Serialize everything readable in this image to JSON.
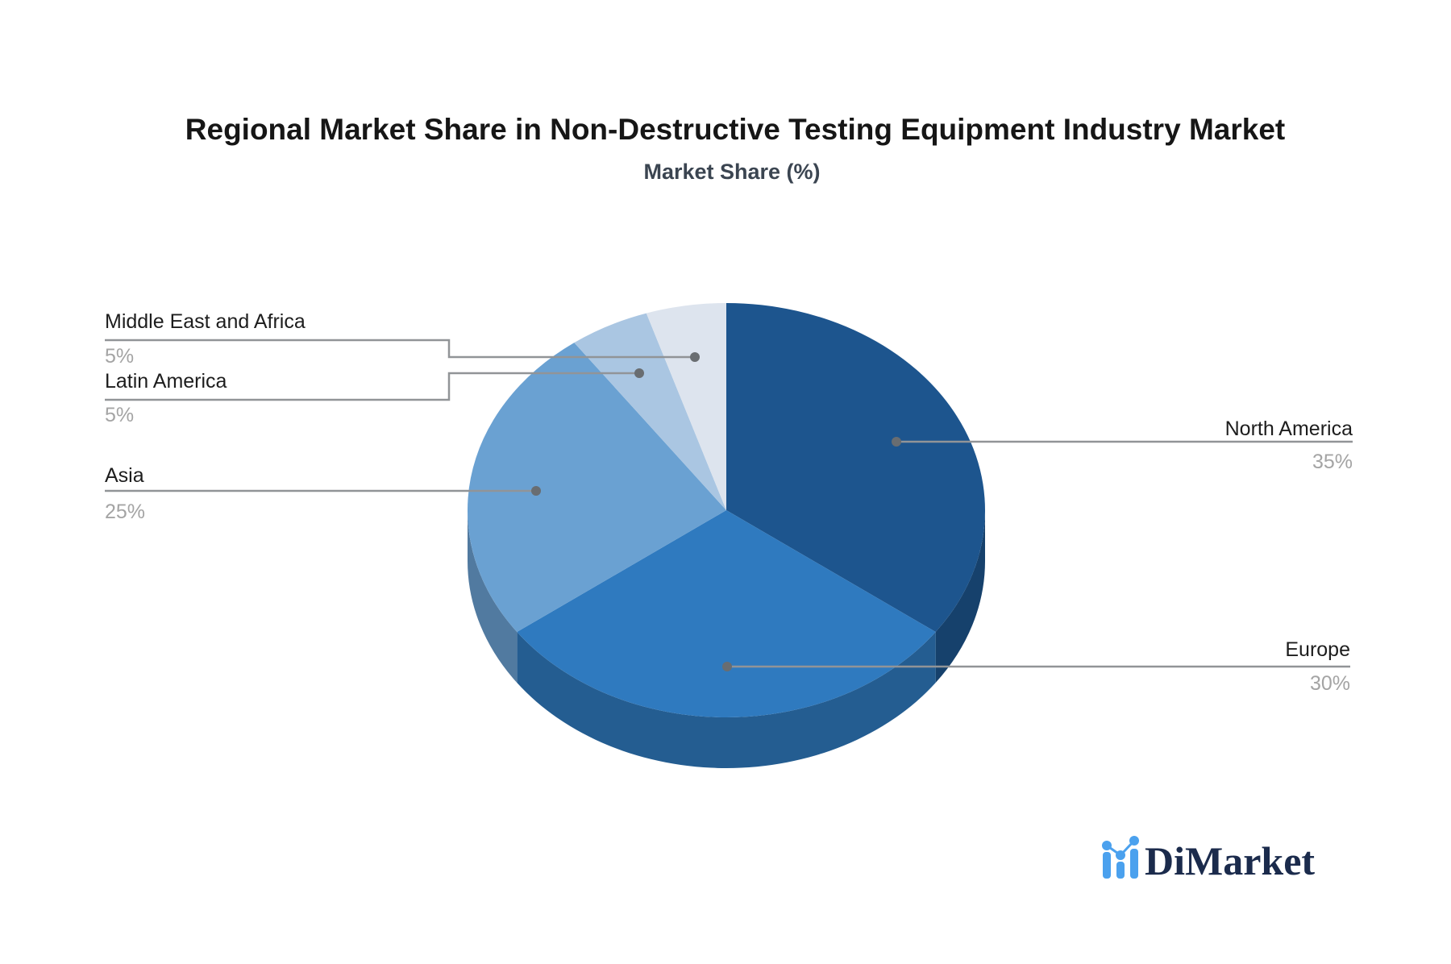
{
  "header": {
    "title": "Regional Market Share in Non-Destructive Testing Equipment Industry Market",
    "subtitle": "Market Share (%)"
  },
  "chart_data": {
    "type": "pie",
    "style": "3d",
    "title": "Regional Market Share in Non-Destructive Testing Equipment Industry Market",
    "subtitle": "Market Share (%)",
    "unit": "%",
    "start_angle_deg": 0,
    "direction": "clockwise",
    "legend": "none",
    "label_style": "callout-lines",
    "series": [
      {
        "name": "North America",
        "value": 35,
        "percent_label": "35%",
        "color": "#1D558E"
      },
      {
        "name": "Europe",
        "value": 30,
        "percent_label": "30%",
        "color": "#2F7ABF"
      },
      {
        "name": "Asia",
        "value": 25,
        "percent_label": "25%",
        "color": "#6AA1D2"
      },
      {
        "name": "Latin America",
        "value": 5,
        "percent_label": "5%",
        "color": "#AAC6E2"
      },
      {
        "name": "Middle East and Africa",
        "value": 5,
        "percent_label": "5%",
        "color": "#DDE4EE"
      }
    ]
  },
  "colors": {
    "background": "#ffffff",
    "title_text": "#161616",
    "subtitle_text": "#3B4551",
    "label_text": "#1d1d1d",
    "percent_text": "#a4a4a4",
    "leader_line": "#919497",
    "logo_blue": "#4BA1EE",
    "logo_navy": "#1B2B4C"
  },
  "logo": {
    "text": "DiMarket"
  }
}
